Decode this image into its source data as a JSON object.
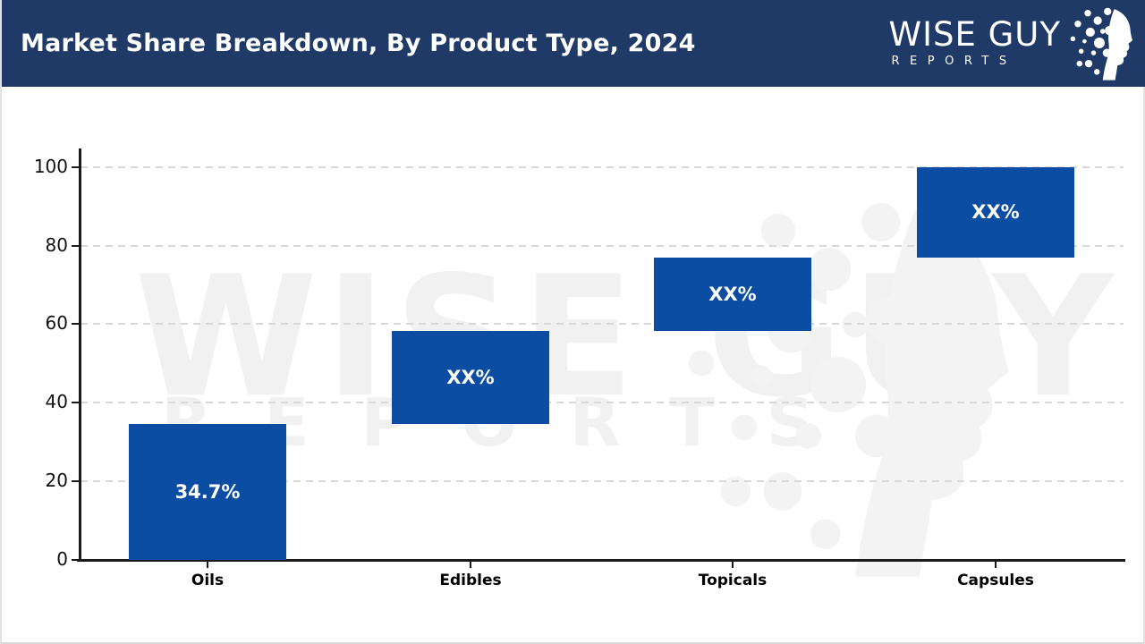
{
  "header": {
    "title": "Market Share Breakdown, By Product Type, 2024",
    "bg_color": "#1F3A66",
    "logo": {
      "line1": "WISE GUY",
      "line2": "REPORTS"
    }
  },
  "watermark": {
    "line1": "WISE GUY",
    "line2": "REPORTS"
  },
  "chart_data": {
    "type": "bar",
    "subtype": "waterfall-floating-bars",
    "title": "Market Share Breakdown, By Product Type, 2024",
    "categories": [
      "Oils",
      "Edibles",
      "Topicals",
      "Capsules"
    ],
    "series": [
      {
        "name": "Market share segment",
        "segments": [
          {
            "category": "Oils",
            "start": 0,
            "end": 34.7,
            "label": "34.7%"
          },
          {
            "category": "Edibles",
            "start": 34.7,
            "end": 58.2,
            "label": "XX%"
          },
          {
            "category": "Topicals",
            "start": 58.2,
            "end": 77.0,
            "label": "XX%"
          },
          {
            "category": "Capsules",
            "start": 77.0,
            "end": 100.0,
            "label": "XX%"
          }
        ]
      }
    ],
    "xlabel": "",
    "ylabel": "",
    "ylim": [
      0,
      105
    ],
    "yticks": [
      0,
      20,
      40,
      60,
      80,
      100
    ],
    "grid": "horizontal-dashed",
    "legend": "none",
    "bar_color": "#0B4DA2",
    "bar_label_color": "#FFFFFF",
    "axis_color": "#1A1A1A"
  }
}
